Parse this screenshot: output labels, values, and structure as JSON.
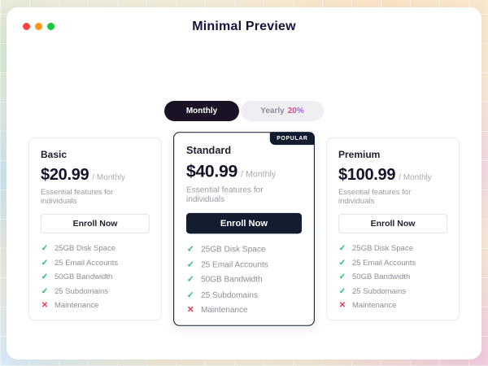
{
  "window": {
    "title": "Minimal Preview",
    "controls": {
      "close": "close",
      "minimize": "minimize",
      "zoom": "zoom"
    }
  },
  "toggle": {
    "monthly_label": "Monthly",
    "yearly_label": "Yearly",
    "yearly_discount": "20%"
  },
  "icons": {
    "check": "✓",
    "cross": "✕"
  },
  "colors": {
    "accent_dark": "#141c30",
    "check_green": "#2bb768",
    "cross_red": "#e83d52",
    "discount_gradient_start": "#f43f5e",
    "discount_gradient_end": "#7c6cf0",
    "traffic_red": "#fd4540",
    "traffic_orange": "#fb9714",
    "traffic_green": "#17c93f"
  },
  "cards": [
    {
      "name": "Basic",
      "price": "$20.99",
      "period": "/ Monthly",
      "description": "Essential features for individuals",
      "button_label": "Enroll Now",
      "popular": false,
      "features": [
        {
          "included": true,
          "text": "25GB Disk Space"
        },
        {
          "included": true,
          "text": "25 Email Accounts"
        },
        {
          "included": true,
          "text": "50GB Bandwidth"
        },
        {
          "included": true,
          "text": "25 Subdomains"
        },
        {
          "included": false,
          "text": "Maintenance"
        }
      ]
    },
    {
      "name": "Standard",
      "price": "$40.99",
      "period": "/ Monthly",
      "description": "Essential features for individuals",
      "button_label": "Enroll Now",
      "popular": true,
      "badge_label": "POPULAR",
      "features": [
        {
          "included": true,
          "text": "25GB Disk Space"
        },
        {
          "included": true,
          "text": "25 Email Accounts"
        },
        {
          "included": true,
          "text": "50GB Bandwidth"
        },
        {
          "included": true,
          "text": "25 Subdomains"
        },
        {
          "included": false,
          "text": "Maintenance"
        }
      ]
    },
    {
      "name": "Premium",
      "price": "$100.99",
      "period": "/ Monthly",
      "description": "Essential features for individuals",
      "button_label": "Enroll Now",
      "popular": false,
      "features": [
        {
          "included": true,
          "text": "25GB Disk Space"
        },
        {
          "included": true,
          "text": "25 Email Accounts"
        },
        {
          "included": true,
          "text": "50GB Bandwidth"
        },
        {
          "included": true,
          "text": "25 Subdomains"
        },
        {
          "included": false,
          "text": "Maintenance"
        }
      ]
    }
  ]
}
